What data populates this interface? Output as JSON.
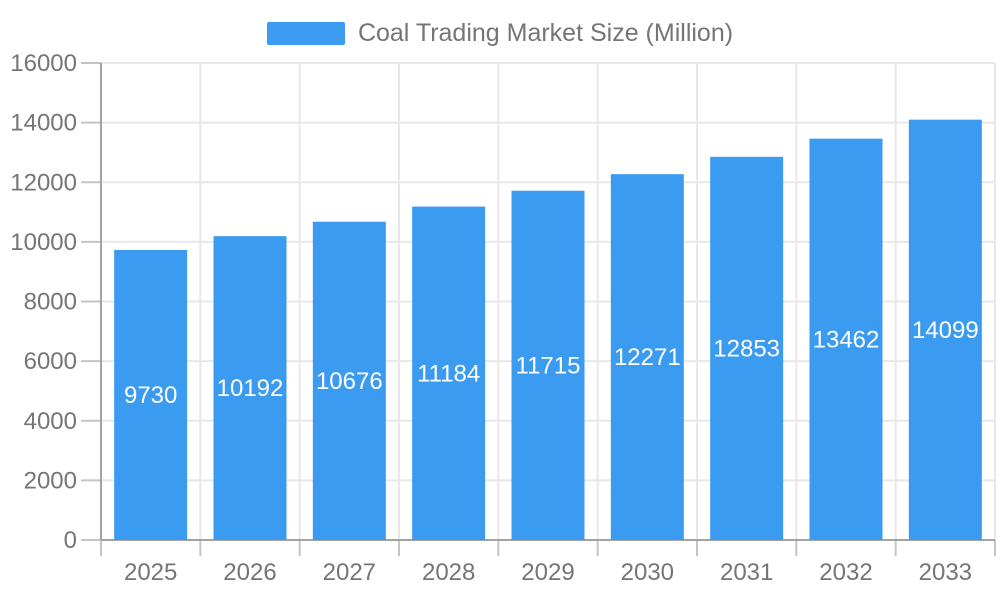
{
  "chart_data": {
    "type": "bar",
    "title": "Coal Trading Market Size (Million)",
    "legend": [
      "Coal Trading Market Size (Million)"
    ],
    "legend_position": "top-center",
    "categories": [
      "2025",
      "2026",
      "2027",
      "2028",
      "2029",
      "2030",
      "2031",
      "2032",
      "2033"
    ],
    "series": [
      {
        "name": "Coal Trading Market Size (Million)",
        "values": [
          9730,
          10192,
          10676,
          11184,
          11715,
          12271,
          12853,
          13462,
          14099
        ]
      }
    ],
    "xlabel": "",
    "ylabel": "",
    "ylim": [
      0,
      16000
    ],
    "ytick_step": 2000,
    "yticks": [
      0,
      2000,
      4000,
      6000,
      8000,
      10000,
      12000,
      14000,
      16000
    ],
    "grid": true,
    "value_labels_position": "inside-center",
    "colors": {
      "bar": "#3B9BF0",
      "grid": "#E8E8E8",
      "axis": "#A3A3A3",
      "tick": "#C4C4C4",
      "text": "#757575",
      "value_label": "#FFFFFF",
      "background": "#FFFFFF"
    }
  }
}
